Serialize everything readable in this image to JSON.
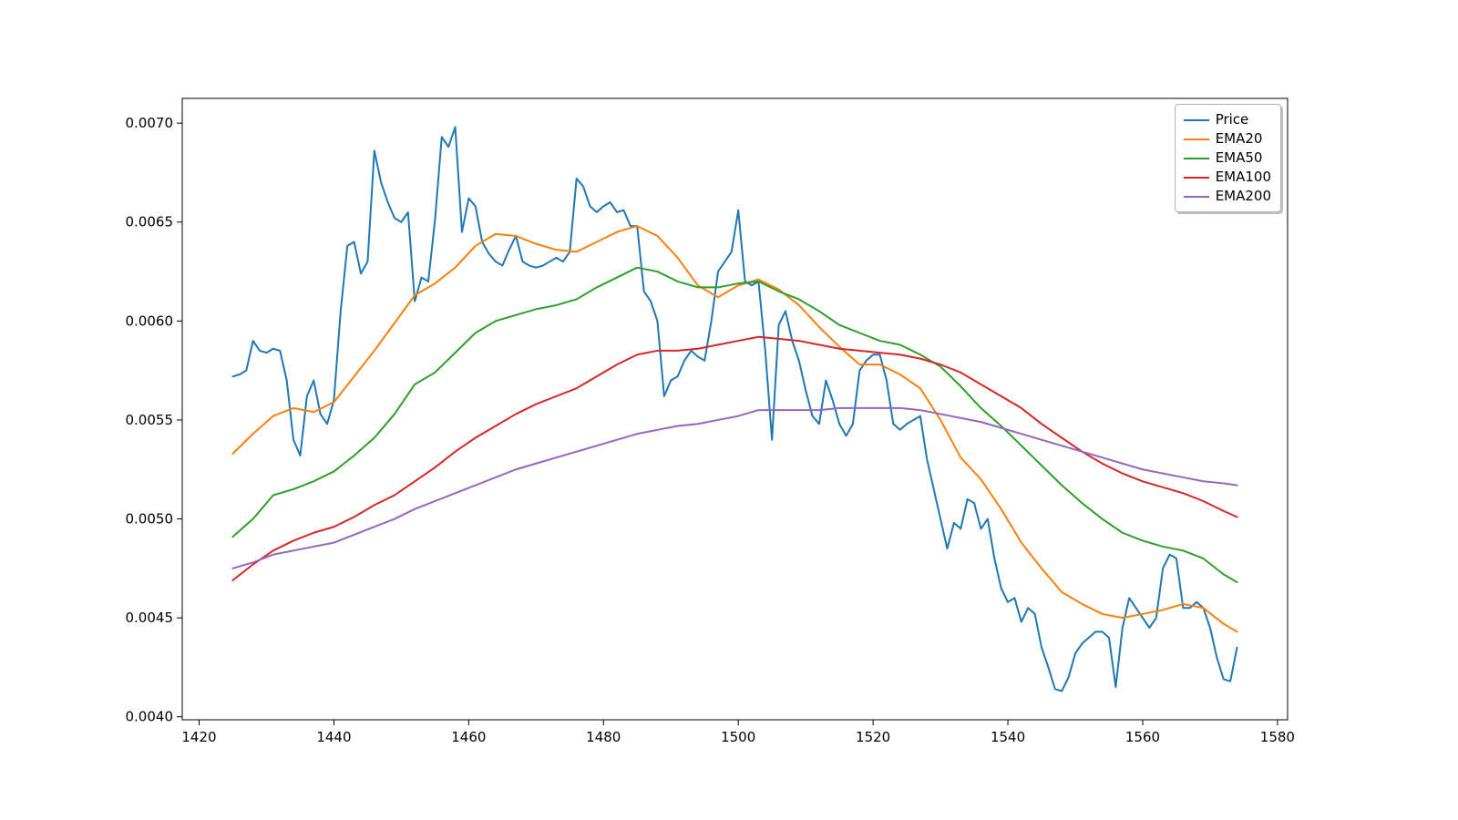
{
  "figure": {
    "background_color": "#ffffff",
    "axes_edge_color": "#000000",
    "tick_label_color": "#000000"
  },
  "chart_data": {
    "type": "line",
    "title": "",
    "xlabel": "",
    "ylabel": "",
    "grid": false,
    "xlim": [
      1417.5,
      1581.5
    ],
    "ylim": [
      0.003985,
      0.007125
    ],
    "x_ticks": [
      1420,
      1440,
      1460,
      1480,
      1500,
      1520,
      1540,
      1560,
      1580
    ],
    "y_ticks": [
      0.004,
      0.0045,
      0.005,
      0.0055,
      0.006,
      0.0065,
      0.007
    ],
    "y_tick_decimals": 4,
    "legend": {
      "position": "upper right",
      "labels": [
        "Price",
        "EMA20",
        "EMA50",
        "EMA100",
        "EMA200"
      ]
    },
    "ema_x": [
      1425,
      1428,
      1431,
      1434,
      1437,
      1440,
      1443,
      1446,
      1449,
      1452,
      1455,
      1458,
      1461,
      1464,
      1467,
      1470,
      1473,
      1476,
      1479,
      1482,
      1485,
      1488,
      1491,
      1494,
      1497,
      1500,
      1503,
      1506,
      1509,
      1512,
      1515,
      1518,
      1521,
      1524,
      1527,
      1530,
      1533,
      1536,
      1539,
      1542,
      1545,
      1548,
      1551,
      1554,
      1557,
      1560,
      1563,
      1566,
      1569,
      1572,
      1574
    ],
    "series": [
      {
        "name": "Price",
        "color": "#1f77b4",
        "x_start": 1425,
        "x_step": 1,
        "values": [
          0.00572,
          0.00573,
          0.00575,
          0.0059,
          0.00585,
          0.00584,
          0.00586,
          0.00585,
          0.0057,
          0.0054,
          0.00532,
          0.00562,
          0.0057,
          0.00553,
          0.00548,
          0.0056,
          0.00605,
          0.00638,
          0.0064,
          0.00624,
          0.0063,
          0.00686,
          0.0067,
          0.0066,
          0.00652,
          0.0065,
          0.00655,
          0.0061,
          0.00622,
          0.0062,
          0.00651,
          0.00693,
          0.00688,
          0.00698,
          0.00645,
          0.00662,
          0.00658,
          0.0064,
          0.00634,
          0.0063,
          0.00628,
          0.00636,
          0.00643,
          0.0063,
          0.00628,
          0.00627,
          0.00628,
          0.0063,
          0.00632,
          0.0063,
          0.00635,
          0.00672,
          0.00668,
          0.00658,
          0.00655,
          0.00658,
          0.0066,
          0.00655,
          0.00656,
          0.00648,
          0.00648,
          0.00615,
          0.0061,
          0.006,
          0.00562,
          0.0057,
          0.00572,
          0.0058,
          0.00585,
          0.00582,
          0.0058,
          0.006,
          0.00625,
          0.0063,
          0.00635,
          0.00656,
          0.0062,
          0.00618,
          0.0062,
          0.00585,
          0.0054,
          0.00598,
          0.00605,
          0.0059,
          0.0058,
          0.00565,
          0.00552,
          0.00548,
          0.0057,
          0.0056,
          0.00548,
          0.00542,
          0.00548,
          0.00575,
          0.0058,
          0.00583,
          0.00583,
          0.0057,
          0.00548,
          0.00545,
          0.00548,
          0.0055,
          0.00552,
          0.0053,
          0.00515,
          0.005,
          0.00485,
          0.00498,
          0.00495,
          0.0051,
          0.00508,
          0.00495,
          0.005,
          0.0048,
          0.00465,
          0.00458,
          0.0046,
          0.00448,
          0.00455,
          0.00452,
          0.00435,
          0.00425,
          0.00414,
          0.00413,
          0.0042,
          0.00432,
          0.00437,
          0.0044,
          0.00443,
          0.00443,
          0.0044,
          0.00415,
          0.00445,
          0.0046,
          0.00455,
          0.0045,
          0.00445,
          0.0045,
          0.00475,
          0.00482,
          0.0048,
          0.00455,
          0.00455,
          0.00458,
          0.00455,
          0.00445,
          0.0043,
          0.00419,
          0.00418,
          0.00435
        ]
      },
      {
        "name": "EMA20",
        "color": "#ff7f0e",
        "x_ref": "ema_x",
        "values": [
          0.00533,
          0.00543,
          0.00552,
          0.00556,
          0.00554,
          0.00559,
          0.00572,
          0.00585,
          0.00599,
          0.00613,
          0.00619,
          0.00627,
          0.00638,
          0.00644,
          0.00643,
          0.00639,
          0.00636,
          0.00635,
          0.0064,
          0.00645,
          0.00648,
          0.00643,
          0.00632,
          0.00618,
          0.00612,
          0.00618,
          0.00621,
          0.00616,
          0.00608,
          0.00597,
          0.00587,
          0.00578,
          0.00578,
          0.00573,
          0.00566,
          0.0055,
          0.00531,
          0.0052,
          0.00505,
          0.00488,
          0.00475,
          0.00463,
          0.00457,
          0.00452,
          0.0045,
          0.00452,
          0.00454,
          0.00457,
          0.00455,
          0.00447,
          0.00443
        ]
      },
      {
        "name": "EMA50",
        "color": "#2ca02c",
        "x_ref": "ema_x",
        "values": [
          0.00491,
          0.005,
          0.00512,
          0.00515,
          0.00519,
          0.00524,
          0.00532,
          0.00541,
          0.00553,
          0.00568,
          0.00574,
          0.00584,
          0.00594,
          0.006,
          0.00603,
          0.00606,
          0.00608,
          0.00611,
          0.00617,
          0.00622,
          0.00627,
          0.00625,
          0.0062,
          0.00617,
          0.00617,
          0.00619,
          0.0062,
          0.00615,
          0.00611,
          0.00605,
          0.00598,
          0.00594,
          0.0059,
          0.00588,
          0.00583,
          0.00577,
          0.00567,
          0.00556,
          0.00547,
          0.00537,
          0.00527,
          0.00517,
          0.00508,
          0.005,
          0.00493,
          0.00489,
          0.00486,
          0.00484,
          0.0048,
          0.00472,
          0.00468
        ]
      },
      {
        "name": "EMA100",
        "color": "#d62728",
        "x_ref": "ema_x",
        "values": [
          0.00469,
          0.00477,
          0.00484,
          0.00489,
          0.00493,
          0.00496,
          0.00501,
          0.00507,
          0.00512,
          0.00519,
          0.00526,
          0.00534,
          0.00541,
          0.00547,
          0.00553,
          0.00558,
          0.00562,
          0.00566,
          0.00572,
          0.00578,
          0.00583,
          0.00585,
          0.00585,
          0.00586,
          0.00588,
          0.0059,
          0.00592,
          0.00591,
          0.0059,
          0.00588,
          0.00586,
          0.00585,
          0.00584,
          0.00583,
          0.00581,
          0.00578,
          0.00574,
          0.00568,
          0.00562,
          0.00556,
          0.00548,
          0.00541,
          0.00534,
          0.00528,
          0.00523,
          0.00519,
          0.00516,
          0.00513,
          0.00509,
          0.00504,
          0.00501
        ]
      },
      {
        "name": "EMA200",
        "color": "#9467bd",
        "x_ref": "ema_x",
        "values": [
          0.00475,
          0.00478,
          0.00482,
          0.00484,
          0.00486,
          0.00488,
          0.00492,
          0.00496,
          0.005,
          0.00505,
          0.00509,
          0.00513,
          0.00517,
          0.00521,
          0.00525,
          0.00528,
          0.00531,
          0.00534,
          0.00537,
          0.0054,
          0.00543,
          0.00545,
          0.00547,
          0.00548,
          0.0055,
          0.00552,
          0.00555,
          0.00555,
          0.00555,
          0.00555,
          0.00556,
          0.00556,
          0.00556,
          0.00556,
          0.00555,
          0.00553,
          0.00551,
          0.00549,
          0.00546,
          0.00543,
          0.0054,
          0.00537,
          0.00534,
          0.00531,
          0.00528,
          0.00525,
          0.00523,
          0.00521,
          0.00519,
          0.00518,
          0.00517
        ]
      }
    ]
  }
}
